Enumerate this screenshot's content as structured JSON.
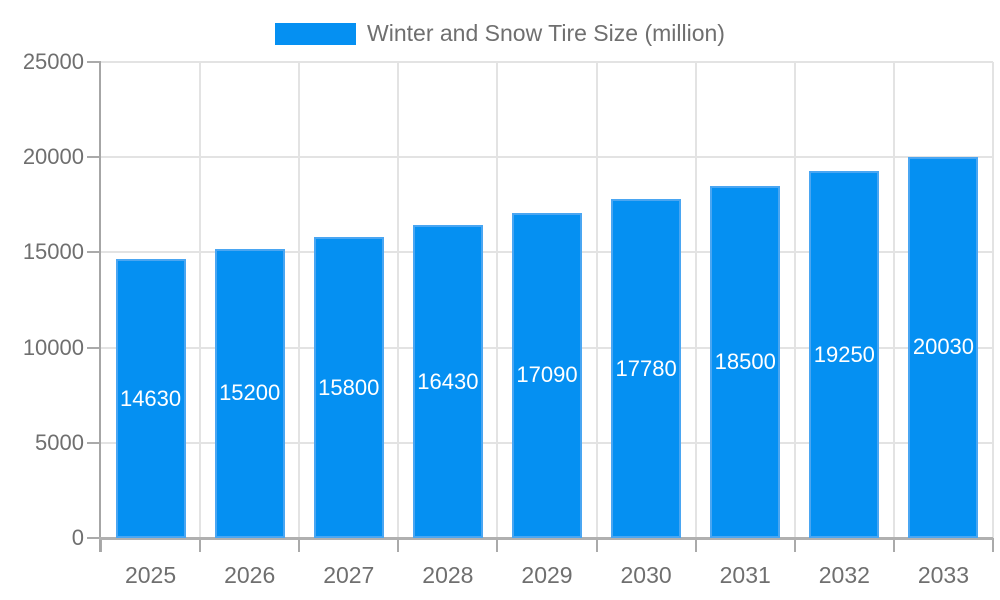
{
  "legend": {
    "label": "Winter and Snow Tire Size (million)"
  },
  "chart_data": {
    "type": "bar",
    "title": "Winter and Snow Tire Size (million)",
    "categories": [
      "2025",
      "2026",
      "2027",
      "2028",
      "2029",
      "2030",
      "2031",
      "2032",
      "2033"
    ],
    "values": [
      14630,
      15200,
      15800,
      16430,
      17090,
      17780,
      18500,
      19250,
      20030
    ],
    "xlabel": "",
    "ylabel": "",
    "ylim": [
      0,
      25000
    ],
    "yticks": [
      0,
      5000,
      10000,
      15000,
      20000,
      25000
    ],
    "grid": true,
    "legend_position": "top",
    "data_labels": "inside-middle",
    "colors": {
      "bar_fill": "#0590F2",
      "bar_border": "#4AA6F2",
      "gridline": "#e3e3e3",
      "y_axis_line": "#a6a6a6",
      "x_axis_line": "#b0b0b0",
      "tick": "#aaaaaa",
      "axis_text": "#6f6f6f",
      "data_label_text": "#ffffff"
    }
  }
}
